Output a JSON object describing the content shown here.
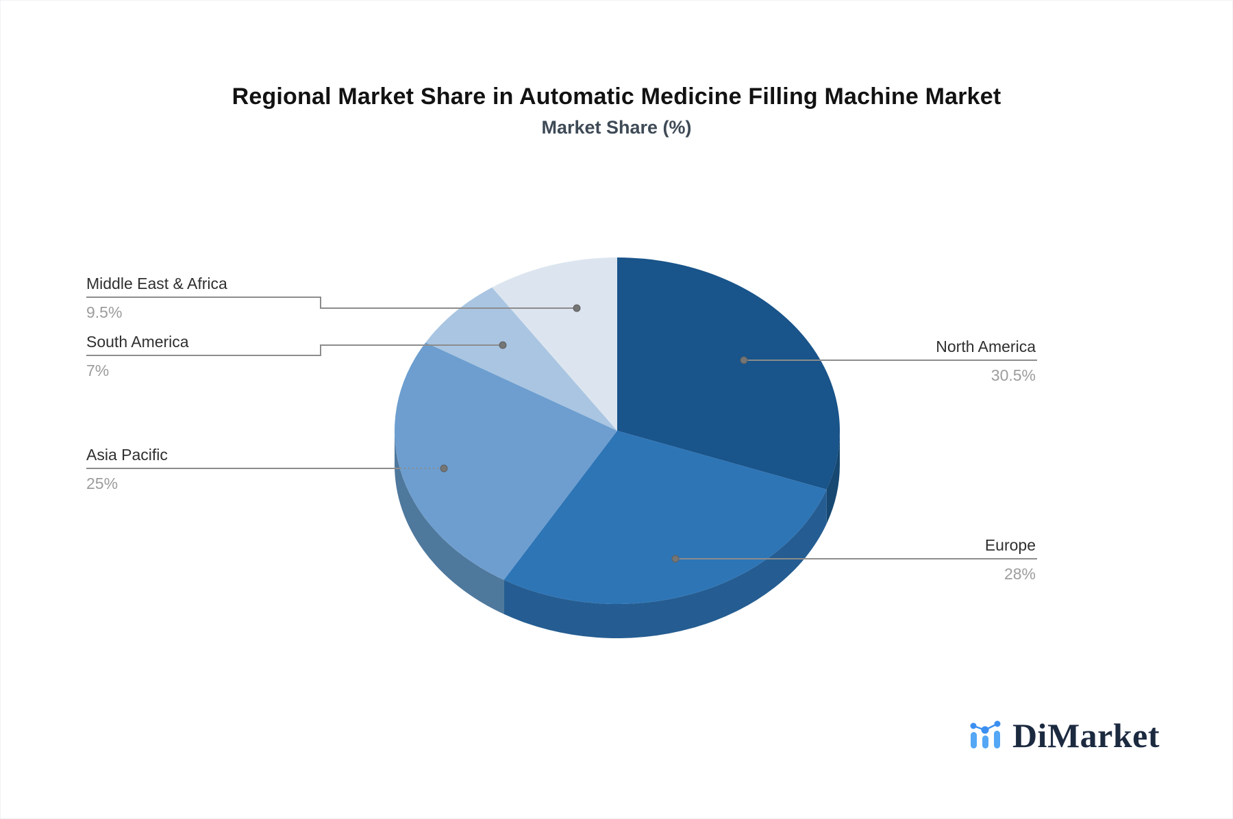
{
  "title": "Regional Market Share in Automatic Medicine Filling Machine Market",
  "subtitle": "Market Share (%)",
  "chart_data": {
    "type": "pie",
    "title": "Regional Market Share in Automatic Medicine Filling Machine Market",
    "subtitle": "Market Share (%)",
    "unit": "%",
    "style": "3d-pie",
    "start_angle": "12-o-clock",
    "direction": "clockwise",
    "total": 100,
    "legend": "none (leader-line callouts)",
    "slices": [
      {
        "label": "North America",
        "value": 30.5,
        "display": "30.5%",
        "color": "#19548A",
        "side_color": "#164871"
      },
      {
        "label": "Europe",
        "value": 28,
        "display": "28%",
        "color": "#2E75B6",
        "side_color": "#255D92"
      },
      {
        "label": "Asia Pacific",
        "value": 25,
        "display": "25%",
        "color": "#6D9ECF",
        "side_color": "#4F789D"
      },
      {
        "label": "South America",
        "value": 7,
        "display": "7%",
        "color": "#A9C5E2"
      },
      {
        "label": "Middle East & Africa",
        "value": 9.5,
        "display": "9.5%",
        "color": "#DCE5EF"
      }
    ]
  },
  "colors": {
    "background": "#FFFFFF",
    "title_text": "#121212",
    "subtitle_text": "#3E4A56",
    "label_text": "#2F2F2F",
    "value_text": "#9C9C9C",
    "leader_line": "#8C8C8C",
    "leader_dot": "#757575",
    "logo_text": "#1C2A40",
    "logo_accent_bar": "#54A7F5",
    "logo_accent_dot": "#3A8FF0"
  },
  "logo": {
    "text": "DiMarket"
  }
}
